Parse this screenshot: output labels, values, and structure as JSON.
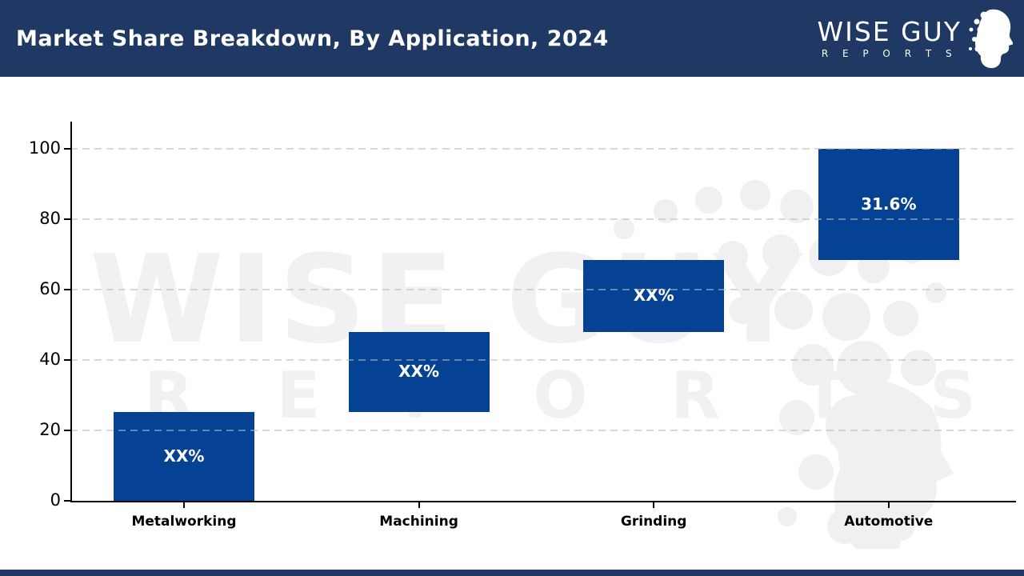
{
  "header": {
    "title": "Market Share Breakdown, By Application, 2024",
    "logo": {
      "wordmark": "WISE GUY",
      "subtitle": "R E P O R T S"
    }
  },
  "watermark": {
    "line1": "WISE GUY",
    "line2": "R E P O R T S"
  },
  "chart_data": {
    "type": "bar",
    "subtype": "floating-waterfall",
    "title": "Market Share Breakdown, By Application, 2024",
    "categories": [
      "Metalworking",
      "Machining",
      "Grinding",
      "Automotive"
    ],
    "segments": [
      {
        "category": "Metalworking",
        "start": 0,
        "end": 25.2,
        "value": 25.2,
        "label": "XX%"
      },
      {
        "category": "Machining",
        "start": 25.2,
        "end": 48,
        "value": 22.8,
        "label": "XX%"
      },
      {
        "category": "Grinding",
        "start": 48,
        "end": 68.4,
        "value": 20.4,
        "label": "XX%"
      },
      {
        "category": "Automotive",
        "start": 68.4,
        "end": 100,
        "value": 31.6,
        "label": "31.6%"
      }
    ],
    "yticks": [
      0,
      20,
      40,
      60,
      80,
      100
    ],
    "ylim": [
      0,
      105
    ],
    "xlabel": "",
    "ylabel": "",
    "grid": "dashed-horizontal",
    "legend": "none"
  },
  "colors": {
    "header_bg": "#1f3864",
    "footer_bg": "#1f3864",
    "bar": "#064293",
    "axis": "#000000",
    "grid": "#d9d9d9",
    "watermark": "#f1f1f4",
    "bar_label": "#ffffff"
  }
}
